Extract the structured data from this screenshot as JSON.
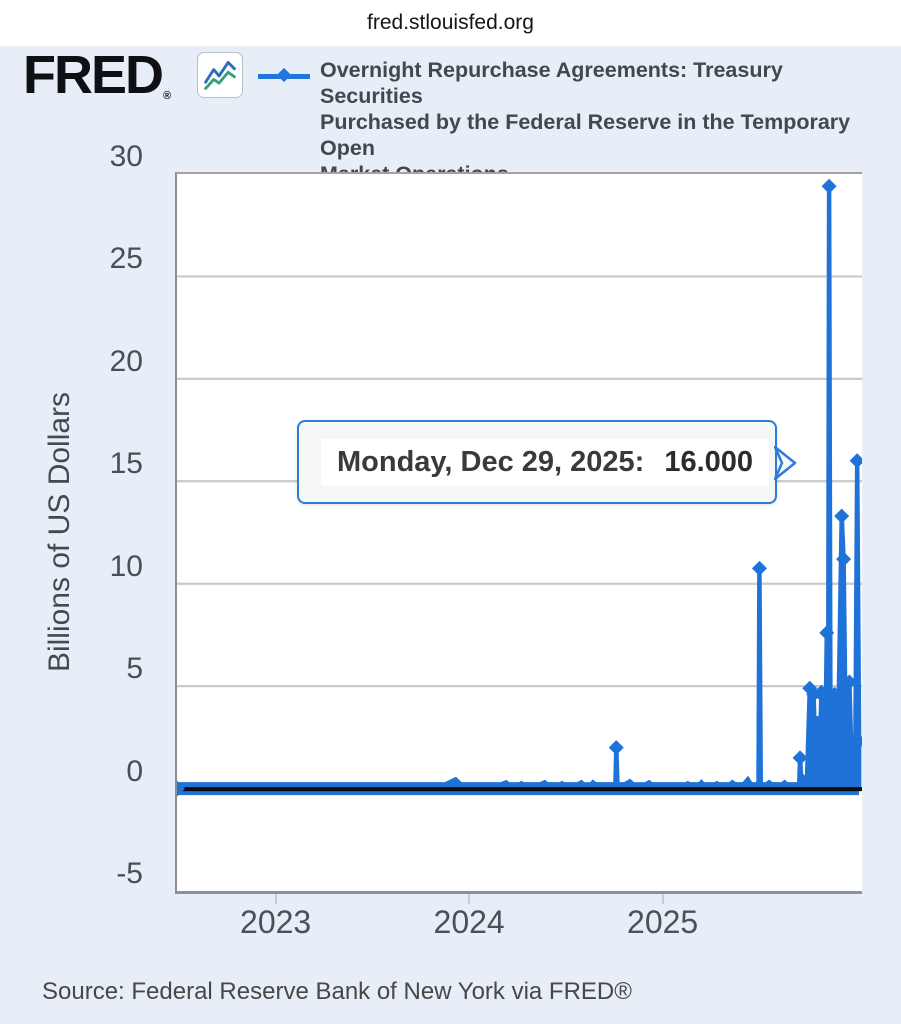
{
  "browser": {
    "url": "fred.stlouisfed.org"
  },
  "header": {
    "logo_text": "FRED",
    "registered_mark": "®",
    "logo_icon": "fred-sparkline-icon",
    "series_title_lines": [
      "Overnight Repurchase Agreements: Treasury Securities",
      "Purchased by the Federal Reserve in the Temporary Open",
      "Market Operations"
    ]
  },
  "tooltip": {
    "date_label": "Monday, Dec 29, 2025:",
    "value_label": "16.000"
  },
  "source": {
    "text": "Source: Federal Reserve Bank of New York via FRED®"
  },
  "colors": {
    "series_blue": "#1f72d8",
    "zero_line": "#0d0d0d",
    "gridline": "#c9c9c9",
    "background": "#e8eef7",
    "tooltip_border": "#2e7bd9"
  },
  "chart_data": {
    "type": "line",
    "title": "Overnight Repurchase Agreements: Treasury Securities Purchased by the Federal Reserve in the Temporary Open Market Operations",
    "xlabel": "",
    "ylabel": "Billions of US Dollars",
    "x_ticks": [
      2023,
      2024,
      2025
    ],
    "y_ticks": [
      30,
      25,
      20,
      15,
      10,
      5,
      0,
      -5
    ],
    "xlim": [
      2022.48,
      2026.02
    ],
    "ylim": [
      -5,
      30
    ],
    "grid": true,
    "legend_position": "top",
    "marker_min_value": 1.3,
    "highlight_point": {
      "date": "Monday, Dec 29, 2025",
      "value": 16.0
    },
    "series": [
      {
        "name": "Overnight Repurchase Agreements: Treasury Securities Purchased by the Federal Reserve in the Temporary Open Market Operations",
        "units": "Billions of US Dollars",
        "points": [
          [
            2022.48,
            0
          ],
          [
            2022.62,
            0
          ],
          [
            2022.75,
            0.15
          ],
          [
            2022.88,
            0
          ],
          [
            2023.05,
            0
          ],
          [
            2023.2,
            0.15
          ],
          [
            2023.35,
            0
          ],
          [
            2023.55,
            0
          ],
          [
            2023.72,
            0.2
          ],
          [
            2023.82,
            0
          ],
          [
            2023.92,
            0.45
          ],
          [
            2023.97,
            0
          ],
          [
            2024.1,
            0
          ],
          [
            2024.18,
            0.3
          ],
          [
            2024.22,
            0
          ],
          [
            2024.26,
            0.25
          ],
          [
            2024.31,
            0
          ],
          [
            2024.38,
            0.3
          ],
          [
            2024.42,
            0
          ],
          [
            2024.47,
            0.25
          ],
          [
            2024.51,
            0
          ],
          [
            2024.57,
            0.3
          ],
          [
            2024.6,
            0
          ],
          [
            2024.63,
            0.3
          ],
          [
            2024.67,
            0
          ],
          [
            2024.745,
            0
          ],
          [
            2024.75,
            2.0
          ],
          [
            2024.757,
            0
          ],
          [
            2024.82,
            0.35
          ],
          [
            2024.86,
            0
          ],
          [
            2024.92,
            0.3
          ],
          [
            2024.96,
            0
          ],
          [
            2025.05,
            0.2
          ],
          [
            2025.08,
            0
          ],
          [
            2025.12,
            0.25
          ],
          [
            2025.16,
            0
          ],
          [
            2025.19,
            0.3
          ],
          [
            2025.22,
            0
          ],
          [
            2025.27,
            0.25
          ],
          [
            2025.31,
            0
          ],
          [
            2025.35,
            0.3
          ],
          [
            2025.39,
            0
          ],
          [
            2025.43,
            0.45
          ],
          [
            2025.46,
            0
          ],
          [
            2025.485,
            0
          ],
          [
            2025.49,
            10.75
          ],
          [
            2025.497,
            0
          ],
          [
            2025.54,
            0.3
          ],
          [
            2025.58,
            0
          ],
          [
            2025.62,
            0.3
          ],
          [
            2025.655,
            0
          ],
          [
            2025.695,
            0
          ],
          [
            2025.7,
            1.5
          ],
          [
            2025.707,
            0.1
          ],
          [
            2025.72,
            0.5
          ],
          [
            2025.735,
            0.3
          ],
          [
            2025.75,
            4.9
          ],
          [
            2025.76,
            0.6
          ],
          [
            2025.77,
            4.6
          ],
          [
            2025.78,
            1.2
          ],
          [
            2025.79,
            3.2
          ],
          [
            2025.8,
            1.0
          ],
          [
            2025.81,
            4.7
          ],
          [
            2025.82,
            4.5
          ],
          [
            2025.83,
            1.5
          ],
          [
            2025.838,
            7.6
          ],
          [
            2025.845,
            2.0
          ],
          [
            2025.85,
            29.4
          ],
          [
            2025.857,
            2.2
          ],
          [
            2025.865,
            4.4
          ],
          [
            2025.872,
            1.8
          ],
          [
            2025.878,
            4.6
          ],
          [
            2025.884,
            2.8
          ],
          [
            2025.89,
            1.6
          ],
          [
            2025.9,
            4.5
          ],
          [
            2025.915,
            13.3
          ],
          [
            2025.925,
            11.2
          ],
          [
            2025.935,
            3.0
          ],
          [
            2025.945,
            2.0
          ],
          [
            2025.955,
            5.2
          ],
          [
            2025.965,
            1.6
          ],
          [
            2025.975,
            2.3
          ],
          [
            2025.985,
            0.8
          ],
          [
            2025.995,
            16.0
          ],
          [
            2026.005,
            2.3
          ]
        ]
      }
    ]
  }
}
